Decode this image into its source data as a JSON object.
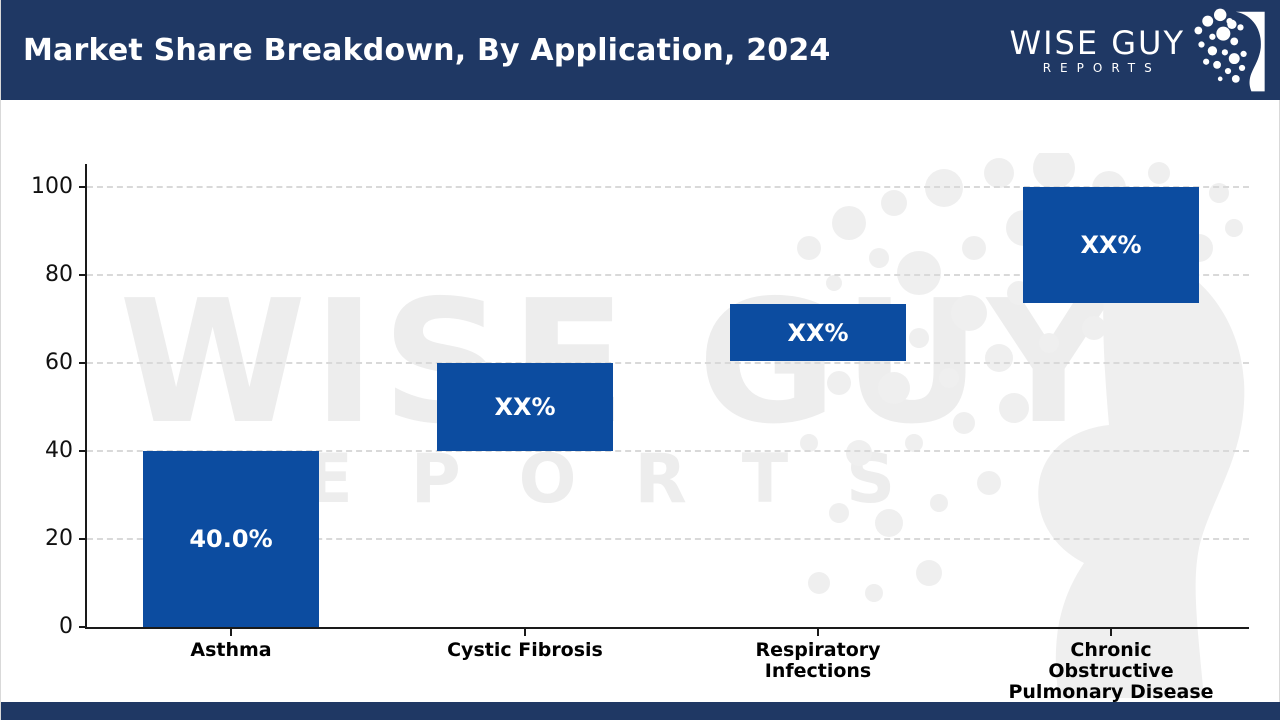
{
  "header": {
    "title": "Market Share Breakdown, By Application, 2024",
    "logo": {
      "line1": "WISE GUY",
      "line2": "REPORTS"
    }
  },
  "watermark": {
    "line1": "WISE GUY",
    "line2": "REPORTS"
  },
  "theme": {
    "header_bg": "#1f3864",
    "footer_bg": "#1f3864",
    "bar_color": "#0c4ca0",
    "bar_label_color": "#ffffff",
    "gridline_color": "#d9d9d9",
    "axis_color": "#1a1a1a",
    "tick_label_color": "#111111",
    "x_label_color": "#000000",
    "watermark_color": "#ededed"
  },
  "chart_data": {
    "type": "bar",
    "variant": "waterfall",
    "title": "Market Share Breakdown, By Application, 2024",
    "categories": [
      "Asthma",
      "Cystic Fibrosis",
      "Respiratory\nInfections",
      "Chronic\nObstructive\nPulmonary Disease"
    ],
    "segments": [
      {
        "category": "Asthma",
        "label": "40.0%",
        "start": 0,
        "end": 40
      },
      {
        "category": "Cystic Fibrosis",
        "label": "XX%",
        "start": 40,
        "end": 60
      },
      {
        "category": "Respiratory Infections",
        "label": "XX%",
        "start": 60.4,
        "end": 73.4
      },
      {
        "category": "Chronic Obstructive Pulmonary Disease",
        "label": "XX%",
        "start": 73.6,
        "end": 100
      }
    ],
    "yticks": [
      0,
      20,
      40,
      60,
      80,
      100
    ],
    "ylim": [
      0,
      105
    ],
    "xlabel": "",
    "ylabel": "",
    "grid": "dashed-horizontal",
    "legend": "none"
  }
}
